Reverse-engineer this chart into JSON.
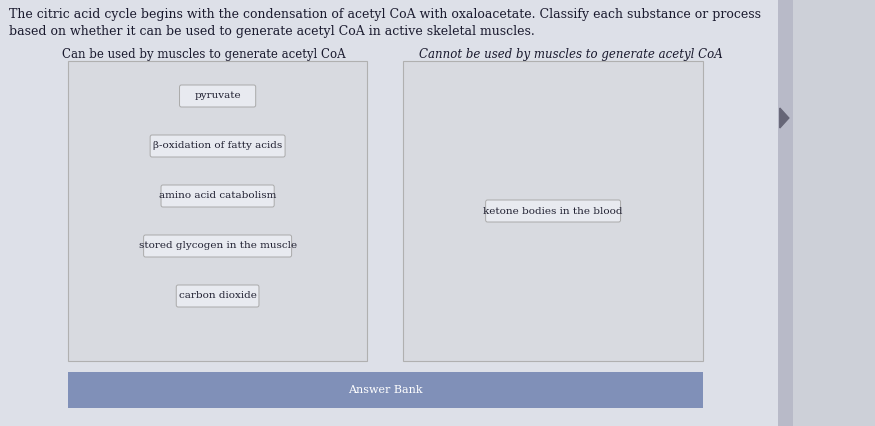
{
  "title_text": "The citric acid cycle begins with the condensation of acetyl CoA with oxaloacetate. Classify each substance or process\nbased on whether it can be used to generate acetyl CoA in active skeletal muscles.",
  "left_header": "Can be used by muscles to generate acetyl CoA",
  "right_header": "Cannot be used by muscles to generate acetyl CoA",
  "left_items": [
    "pyruvate",
    "β-oxidation of fatty acids",
    "amino acid catabolism",
    "stored glycogen in the muscle",
    "carbon dioxide"
  ],
  "right_items": [
    "ketone bodies in the blood"
  ],
  "answer_bank_label": "Answer Bank",
  "page_bg": "#cdd0d8",
  "content_bg": "#dde0e8",
  "box_bg": "#d8dae0",
  "item_box_bg": "#e8eaf0",
  "item_box_border": "#aaaaaa",
  "answer_bank_color": "#8090b8",
  "title_fontsize": 9,
  "header_fontsize": 8.5,
  "item_fontsize": 7.5
}
